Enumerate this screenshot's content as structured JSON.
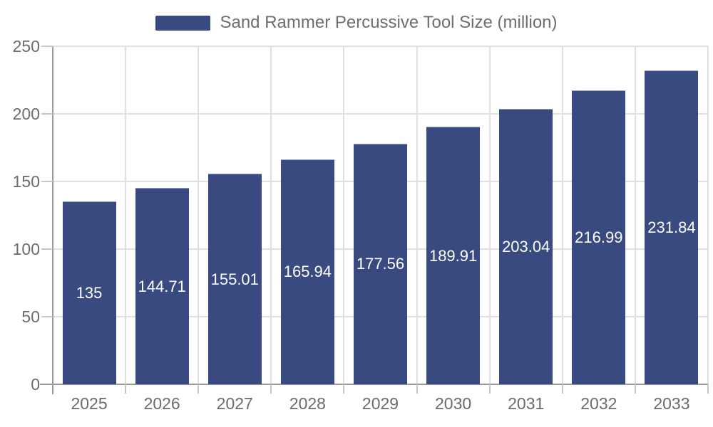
{
  "chart_data": {
    "type": "bar",
    "title": "Sand Rammer Percussive Tool Size (million)",
    "categories": [
      "2025",
      "2026",
      "2027",
      "2028",
      "2029",
      "2030",
      "2031",
      "2032",
      "2033"
    ],
    "series": [
      {
        "name": "Sand Rammer Percussive Tool Size (million)",
        "values": [
          135,
          144.71,
          155.01,
          165.94,
          177.56,
          189.91,
          203.04,
          216.99,
          231.84
        ],
        "value_labels": [
          "135",
          "144.71",
          "155.01",
          "165.94",
          "177.56",
          "189.91",
          "203.04",
          "216.99",
          "231.84"
        ]
      }
    ],
    "xlabel": "",
    "ylabel": "",
    "ylim": [
      0,
      250
    ],
    "yticks": [
      0,
      50,
      100,
      150,
      200,
      250
    ],
    "grid": true,
    "legend_position": "top-center",
    "value_label_position": "bar-center",
    "colors": {
      "bar": "#394A81",
      "axis_line": "#999999",
      "gridline": "#E0E0E0",
      "tick": "#C6C6C6",
      "tick_label": "#6B6B6B",
      "legend_text": "#6E6E6E",
      "value_label": "#FFFFFF",
      "background": "#FFFFFF"
    }
  }
}
